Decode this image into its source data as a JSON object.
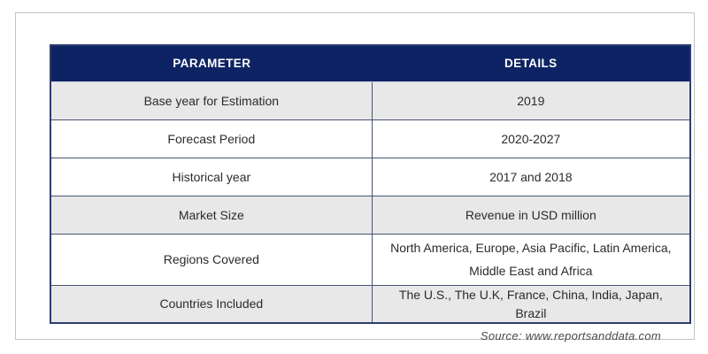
{
  "chart_data": {
    "type": "table",
    "title": "Report scope parameters table",
    "columns": [
      "PARAMETER",
      "DETAILS"
    ],
    "rows": [
      [
        "Base year for Estimation",
        "2019"
      ],
      [
        "Forecast Period",
        "2020-2027"
      ],
      [
        "Historical year",
        "2017 and 2018"
      ],
      [
        "Market Size",
        "Revenue in USD million"
      ],
      [
        "Regions Covered",
        "North America, Europe, Asia Pacific, Latin America, Middle East and Africa"
      ],
      [
        "Countries Included",
        "The U.S., The  U.K, France, China, India, Japan, Brazil"
      ]
    ],
    "row_shading": [
      "gray",
      "white",
      "white",
      "gray",
      "white",
      "gray"
    ],
    "source": "Source: www.reportsanddata.com"
  },
  "colors": {
    "header-bg": "#0d2363",
    "header-text": "#ffffff",
    "header-divider": "#c9d2e2",
    "row-bg": "#ffffff",
    "row-alt-bg": "#e8e8e8",
    "table-border": "#2e3d6e",
    "inner-border": "#46536f",
    "frame-border": "#c2c2c2",
    "text": "#2b2b2b",
    "source-text": "#4a4a4a"
  }
}
